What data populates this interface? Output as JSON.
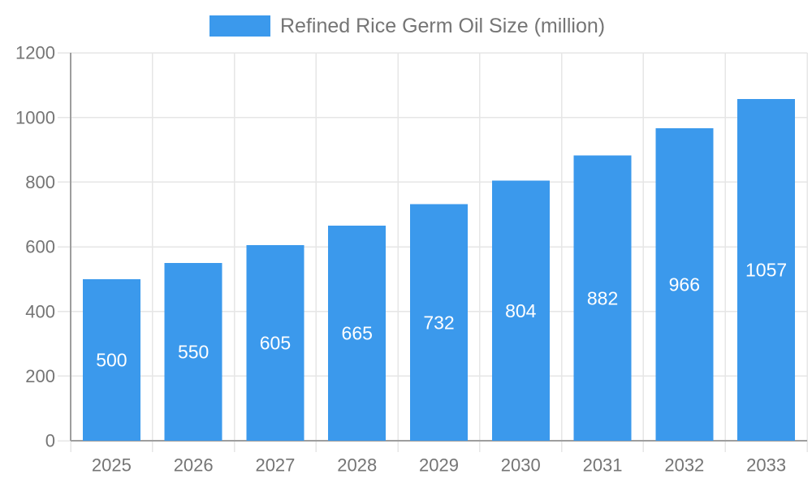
{
  "legend": {
    "label": "Refined Rice Germ Oil Size (million)"
  },
  "chart_data": {
    "type": "bar",
    "title": "",
    "xlabel": "",
    "ylabel": "",
    "categories": [
      "2025",
      "2026",
      "2027",
      "2028",
      "2029",
      "2030",
      "2031",
      "2032",
      "2033"
    ],
    "values": [
      500,
      550,
      605,
      665,
      732,
      804,
      882,
      966,
      1057
    ],
    "series_name": "Refined Rice Germ Oil Size (million)",
    "ylim": [
      0,
      1200
    ],
    "yticks": [
      0,
      200,
      400,
      600,
      800,
      1000,
      1200
    ],
    "grid": true,
    "legend_position": "top",
    "value_labels": "inside-center",
    "colors": {
      "bar": "#3B99EC",
      "value_label": "#FFFFFF",
      "axis": "#9E9E9E",
      "grid": "#E6E6E6",
      "tick_label": "#757575"
    }
  }
}
